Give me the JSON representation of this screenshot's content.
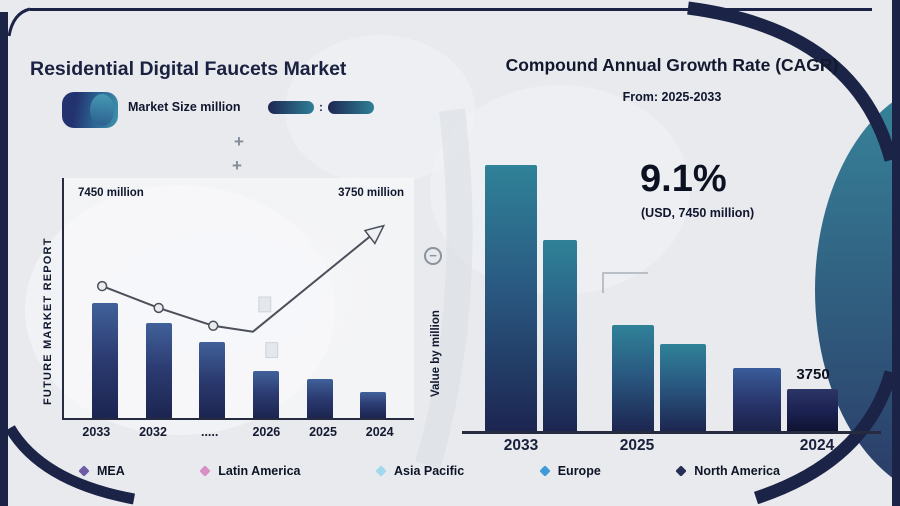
{
  "colors": {
    "navy": "#1b2447",
    "teal": "#2e8097",
    "background": "#e8eaee"
  },
  "decor": {
    "plus": "+",
    "minus": "−",
    "colon": ":"
  },
  "chart_data": [
    {
      "type": "bar",
      "panel": "left",
      "title": "Residential Digital Faucets Market",
      "legend_label": "Market Size million",
      "ylabel": "FUTURE MARKET REPORT",
      "annotation_left": "7450 million",
      "annotation_right": "3750 million",
      "categories": [
        "2033",
        "2032",
        ".....",
        "2026",
        "2025",
        "2024"
      ],
      "values": [
        100,
        83,
        66,
        41,
        34,
        23
      ],
      "ylim": [
        0,
        100
      ],
      "grid": false,
      "trend": {
        "shape": "declining-markers-then-rising-arrow",
        "marker_count": 3
      }
    },
    {
      "type": "bar",
      "panel": "right",
      "title": "Compound Annual Growth Rate (CAGR)",
      "subtitle": "From: 2025-2033",
      "ylabel": "Value by million",
      "categories": [
        "2033",
        "2025",
        "2024"
      ],
      "series": [
        {
          "name": "bar-a",
          "values": [
            100,
            40,
            24
          ]
        },
        {
          "name": "bar-b",
          "values": [
            72,
            33,
            16
          ]
        }
      ],
      "data_label": "3750",
      "cagr": "9.1%",
      "cagr_note": "(USD, 7450 million)",
      "ylim": [
        0,
        100
      ],
      "grid": false
    }
  ],
  "region_legend": {
    "items": [
      {
        "label": "MEA",
        "color": "#6e5ca6"
      },
      {
        "label": "Latin America",
        "color": "#d78fc5"
      },
      {
        "label": "Asia Pacific",
        "color": "#9ed9ec"
      },
      {
        "label": "Europe",
        "color": "#3f9ad7"
      },
      {
        "label": "North America",
        "color": "#262f58"
      }
    ]
  }
}
